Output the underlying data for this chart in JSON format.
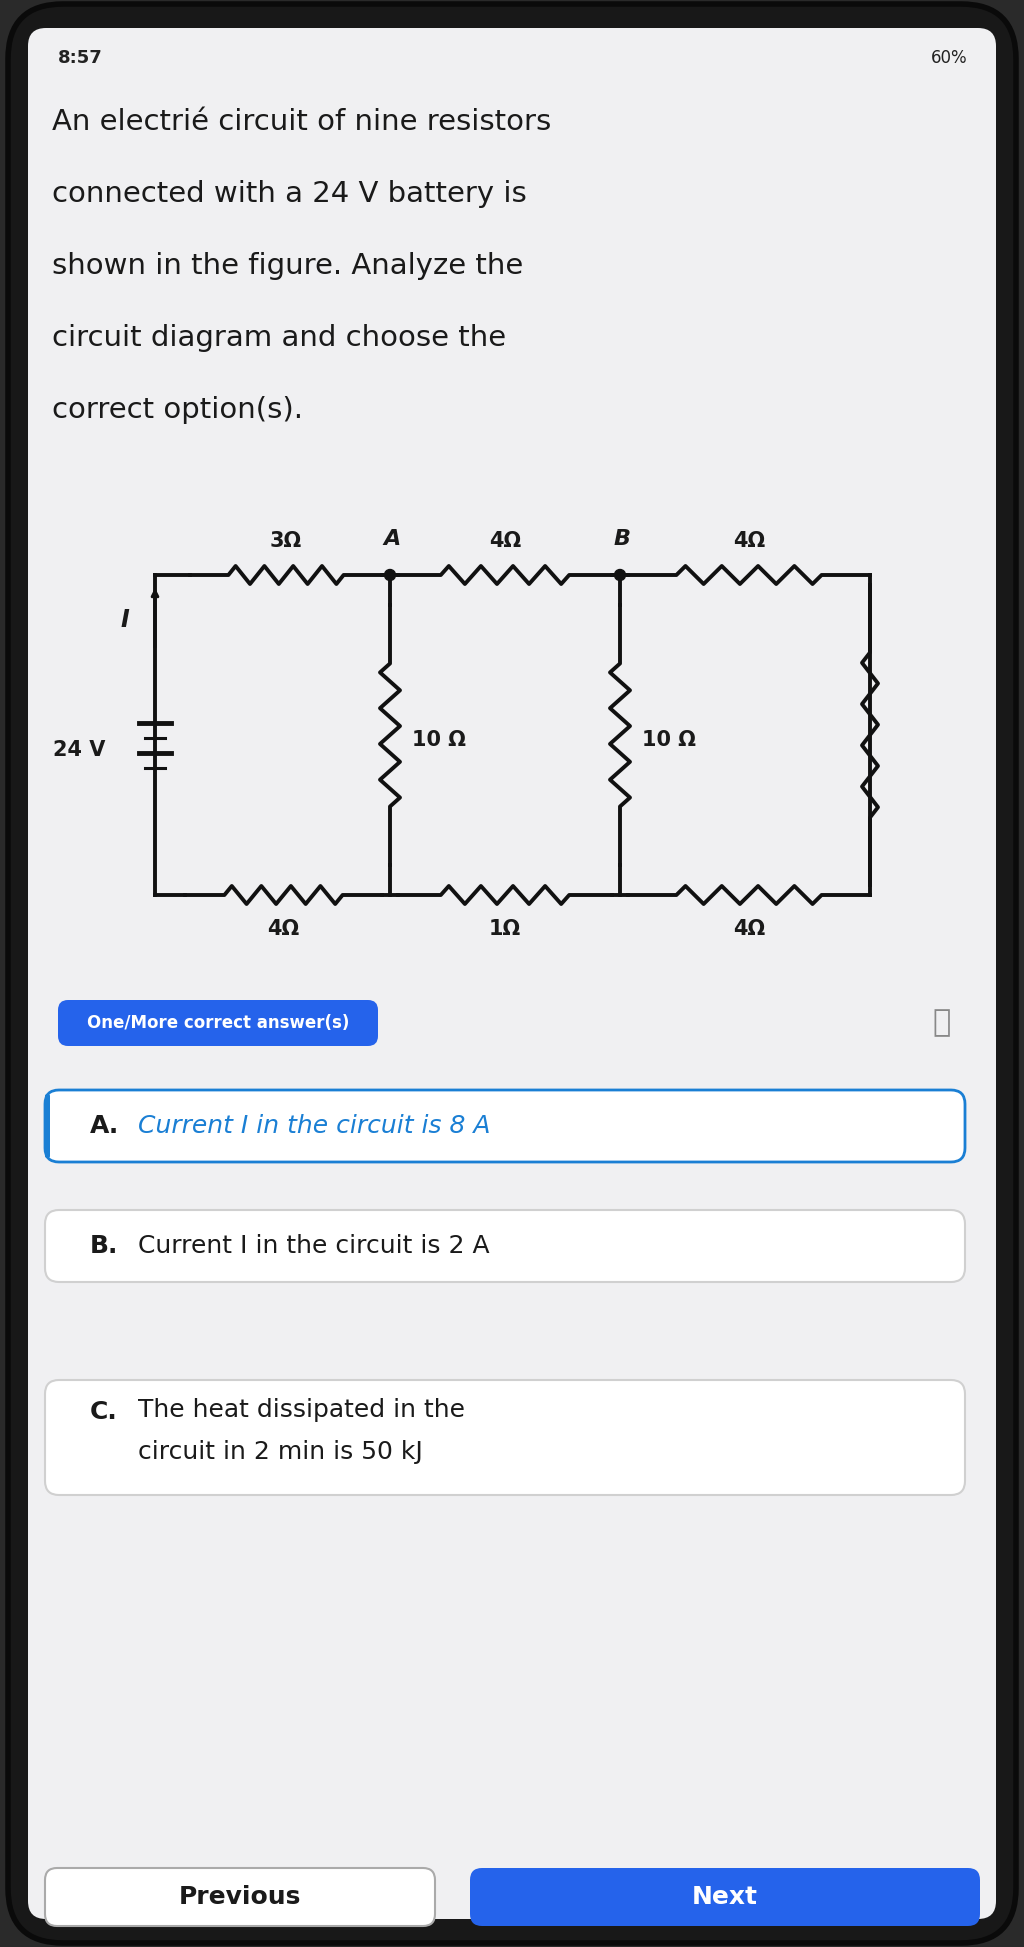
{
  "bg_color": "#2a2a2a",
  "screen_bg": "#f0f0f2",
  "phone_frame_color": "#1a1a1a",
  "status_bar_text": "8:57",
  "battery_text": "60%",
  "problem_lines": [
    "An electrié circuit of nine resistors",
    "connected with a 24 V battery is",
    "shown in the figure. Analyze the",
    "circuit diagram and choose the",
    "correct option(s)."
  ],
  "circuit_voltage": "24 V",
  "resistors_top": [
    "3Ω",
    "4Ω",
    "4Ω"
  ],
  "resistors_mid": [
    "10 Ω",
    "10 Ω"
  ],
  "resistors_bot": [
    "4Ω",
    "1Ω",
    "4Ω"
  ],
  "nodes": [
    "A",
    "B"
  ],
  "current_label": "I",
  "badge_text": "One/More correct answer(s)",
  "badge_color": "#2563eb",
  "option_A_label": "A.",
  "option_A_text": "Current I in the circuit is 8 A",
  "option_A_text_color": "#1a7fd4",
  "option_B_label": "B.",
  "option_B_text": "Current I in the circuit is 2 A",
  "option_B_text_color": "#1a1a1a",
  "option_C_label": "C.",
  "option_C_text_line1": "The heat dissipated in the",
  "option_C_text_line2": "circuit in 2 min is 50 kJ",
  "option_C_text_color": "#1a1a1a",
  "btn_prev_text": "Previous",
  "btn_next_text": "Next",
  "btn_next_color": "#2563eb",
  "text_color_dark": "#1a1a1a",
  "text_color_blue": "#1a7fd4",
  "wire_color": "#111111"
}
